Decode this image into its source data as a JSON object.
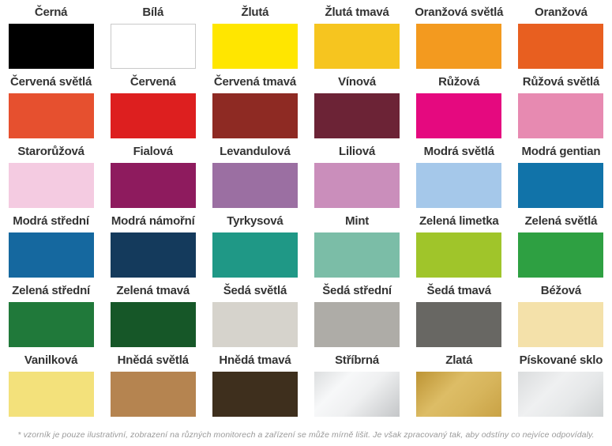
{
  "chart_data": {
    "type": "table",
    "title": "",
    "description": "Color sample chart (vzornik barev): 6x6 grid of named color swatches with Czech labels",
    "grid": {
      "columns": 6,
      "rows": 6
    },
    "label_color": "#333333",
    "swatches": [
      {
        "label": "Černá",
        "color": "#000000"
      },
      {
        "label": "Bílá",
        "color": "#FFFFFF",
        "border": "#C9C9C9"
      },
      {
        "label": "Žlutá",
        "color": "#FFE600"
      },
      {
        "label": "Žlutá tmavá",
        "color": "#F6C51F"
      },
      {
        "label": "Oranžová světlá",
        "color": "#F39A1F"
      },
      {
        "label": "Oranžová",
        "color": "#E85F20"
      },
      {
        "label": "Červená světlá",
        "color": "#E6502F"
      },
      {
        "label": "Červená",
        "color": "#DD1F1F"
      },
      {
        "label": "Červená tmavá",
        "color": "#8E2A23"
      },
      {
        "label": "Vínová",
        "color": "#6C2336"
      },
      {
        "label": "Růžová",
        "color": "#E5097F"
      },
      {
        "label": "Růžová světlá",
        "color": "#E78AB1"
      },
      {
        "label": "Starorůžová",
        "color": "#F4CBE1"
      },
      {
        "label": "Fialová",
        "color": "#8E1B5E"
      },
      {
        "label": "Levandulová",
        "color": "#9B6FA2"
      },
      {
        "label": "Liliová",
        "color": "#CA8EBB"
      },
      {
        "label": "Modrá světlá",
        "color": "#A5C8EA"
      },
      {
        "label": "Modrá gentian",
        "color": "#1173A9"
      },
      {
        "label": "Modrá střední",
        "color": "#15689F"
      },
      {
        "label": "Modrá námořní",
        "color": "#143A5C"
      },
      {
        "label": "Tyrkysová",
        "color": "#1F9886"
      },
      {
        "label": "Mint",
        "color": "#7BBDA7"
      },
      {
        "label": "Zelená limetka",
        "color": "#A0C52A"
      },
      {
        "label": "Zelená světlá",
        "color": "#2EA042"
      },
      {
        "label": "Zelená střední",
        "color": "#20793A"
      },
      {
        "label": "Zelená tmavá",
        "color": "#165728"
      },
      {
        "label": "Šedá světlá",
        "color": "#D6D3CC"
      },
      {
        "label": "Šedá střední",
        "color": "#AEACA7"
      },
      {
        "label": "Šedá tmavá",
        "color": "#686763"
      },
      {
        "label": "Béžová",
        "color": "#F4E1AA"
      },
      {
        "label": "Vanilková",
        "color": "#F3E17B"
      },
      {
        "label": "Hnědá světlá",
        "color": "#B58450"
      },
      {
        "label": "Hnědá tmavá",
        "color": "#3E2F1D"
      },
      {
        "label": "Stříbrná",
        "color": "#D9DBDD",
        "gradient": "linear-gradient(135deg, #dcdedf 0%, #f7f8f9 30%, #eff0f1 55%, #c4c6c8 100%)"
      },
      {
        "label": "Zlatá",
        "color": "#CFA94B",
        "gradient": "linear-gradient(135deg, #bd9434 0%, #ddbd66 40%, #d7b55c 65%, #c9a245 100%)"
      },
      {
        "label": "Pískované sklo",
        "color": "#E0E2E3",
        "gradient": "linear-gradient(135deg, #dadcdd 0%, #eff0f1 38%, #e6e8e9 65%, #d0d3d4 100%)"
      }
    ]
  },
  "footer": {
    "note": "* vzorník je pouze ilustrativní, zobrazení na různých monitorech a zařízení se může mírně lišit. Je však zpracovaný tak, aby odstíny co nejvíce odpovídaly."
  }
}
